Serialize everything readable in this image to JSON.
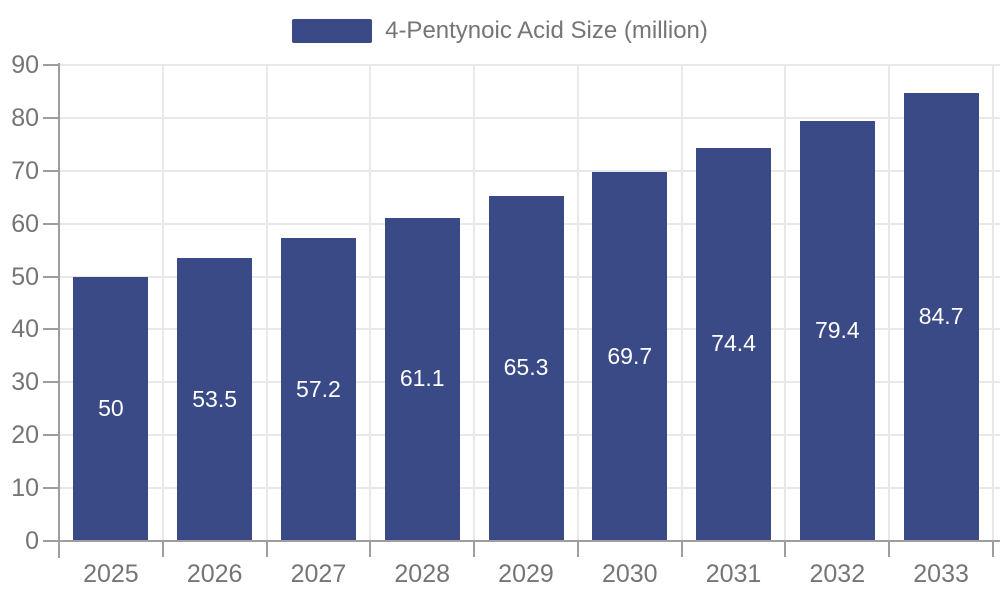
{
  "legend": {
    "label": "4-Pentynoic Acid Size (million)"
  },
  "chart_data": {
    "type": "bar",
    "title": "4-Pentynoic Acid Size (million)",
    "categories": [
      "2025",
      "2026",
      "2027",
      "2028",
      "2029",
      "2030",
      "2031",
      "2032",
      "2033"
    ],
    "series": [
      {
        "name": "4-Pentynoic Acid Size (million)",
        "values": [
          50,
          53.5,
          57.2,
          61.1,
          65.3,
          69.7,
          74.4,
          79.4,
          84.7
        ]
      }
    ],
    "value_labels": [
      "50",
      "53.5",
      "57.2",
      "61.1",
      "65.3",
      "69.7",
      "74.4",
      "79.4",
      "84.7"
    ],
    "xlabel": "",
    "ylabel": "",
    "ylim": [
      0,
      90
    ],
    "yticks": [
      0,
      10,
      20,
      30,
      40,
      50,
      60,
      70,
      80,
      90
    ],
    "grid": true,
    "legend_position": "top",
    "colors": {
      "bar": "#3A4A87",
      "axis": "#9E9E9E",
      "grid": "#E8E8E8",
      "tick_text": "#757575",
      "value_text": "#FFFFFF"
    }
  }
}
